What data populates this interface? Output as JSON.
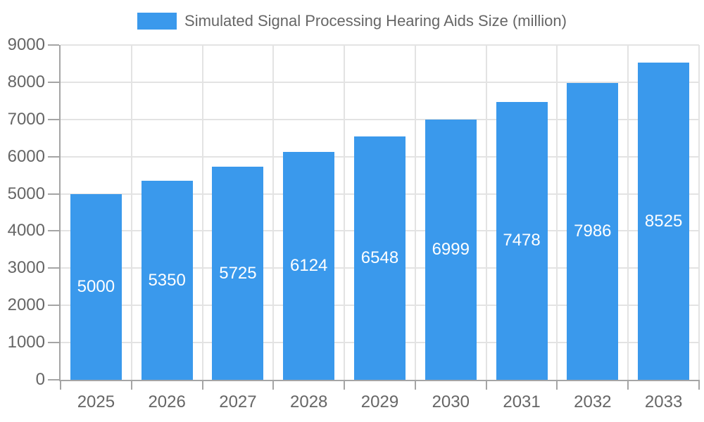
{
  "chart_data": {
    "type": "bar",
    "title": "Simulated Signal Processing Hearing Aids Size (million)",
    "legend_label": "Simulated Signal Processing Hearing Aids Size (million)",
    "legend_position": "top",
    "categories": [
      "2025",
      "2026",
      "2027",
      "2028",
      "2029",
      "2030",
      "2031",
      "2032",
      "2033"
    ],
    "values": [
      5000,
      5350,
      5725,
      6124,
      6548,
      6999,
      7478,
      7986,
      8525
    ],
    "xlabel": "",
    "ylabel": "",
    "ylim": [
      0,
      9000
    ],
    "yticks": [
      0,
      1000,
      2000,
      3000,
      4000,
      5000,
      6000,
      7000,
      8000,
      9000
    ],
    "grid": true,
    "bar_value_labels_visible": true,
    "colors": {
      "bar": "#3a99ec",
      "bar_label": "#ffffff",
      "grid": "#e3e3e3",
      "axis_line": "#a5a5a5",
      "text": "#666666",
      "background": "#ffffff"
    }
  }
}
